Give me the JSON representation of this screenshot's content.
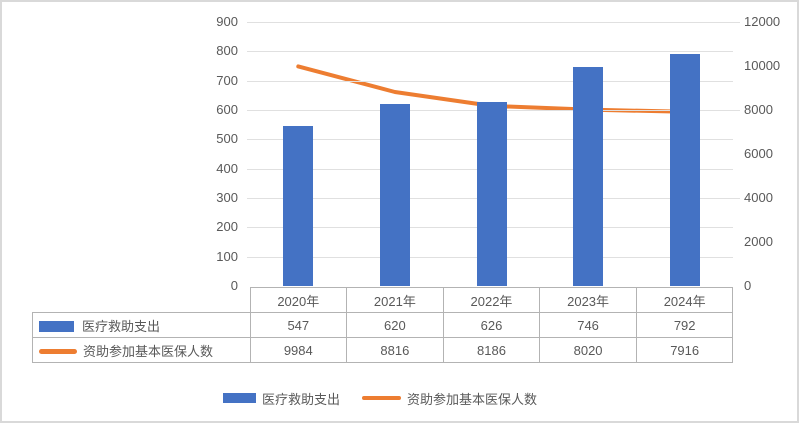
{
  "chart_data": {
    "type": "bar+line",
    "title": "",
    "categories": [
      "2020年",
      "2021年",
      "2022年",
      "2023年",
      "2024年"
    ],
    "series": [
      {
        "name": "医疗救助支出",
        "type": "bar",
        "axis": "left",
        "color": "#4472C4",
        "values": [
          547,
          620,
          626,
          746,
          792
        ]
      },
      {
        "name": "资助参加基本医保人数",
        "type": "line",
        "axis": "right",
        "color": "#ED7D31",
        "values": [
          9984,
          8816,
          8186,
          8020,
          7916
        ]
      }
    ],
    "left_axis": {
      "min": 0,
      "max": 900,
      "step": 100
    },
    "right_axis": {
      "min": 0,
      "max": 12000,
      "step": 2000
    },
    "grid": true,
    "legend_position": "bottom",
    "data_table_shown": true,
    "colors": {
      "bar": "#4472C4",
      "line": "#ED7D31",
      "gridline": "#e0e0e0",
      "axis_text": "#595959",
      "table_border": "#b3b3b3",
      "frame_border": "#d9d9d9"
    }
  }
}
